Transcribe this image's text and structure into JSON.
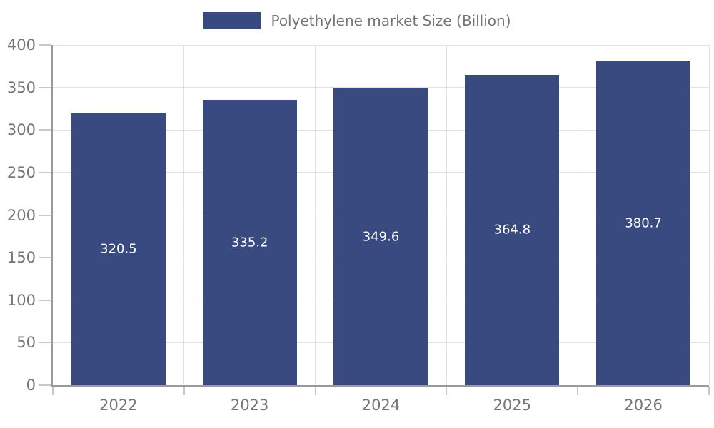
{
  "chart_data": {
    "type": "bar",
    "title": "Polyethylene market Size (Billion)",
    "categories": [
      "2022",
      "2023",
      "2024",
      "2025",
      "2026"
    ],
    "values": [
      320.5,
      335.2,
      349.6,
      364.8,
      380.7
    ],
    "value_labels": [
      "320.5",
      "335.2",
      "349.6",
      "364.8",
      "380.7"
    ],
    "yticks": [
      0,
      50,
      100,
      150,
      200,
      250,
      300,
      350,
      400
    ],
    "ylim": [
      0,
      400
    ],
    "xlabel": "",
    "ylabel": "",
    "grid": "on",
    "legend_position": "top-center",
    "colors": {
      "bar": "#394a80",
      "value_label": "#ffffff",
      "axis_text": "#757575",
      "gridline": "#e2e2e2",
      "spine": "#9a9a9a",
      "tick": "#c9c9c9",
      "background": "#ffffff"
    }
  }
}
